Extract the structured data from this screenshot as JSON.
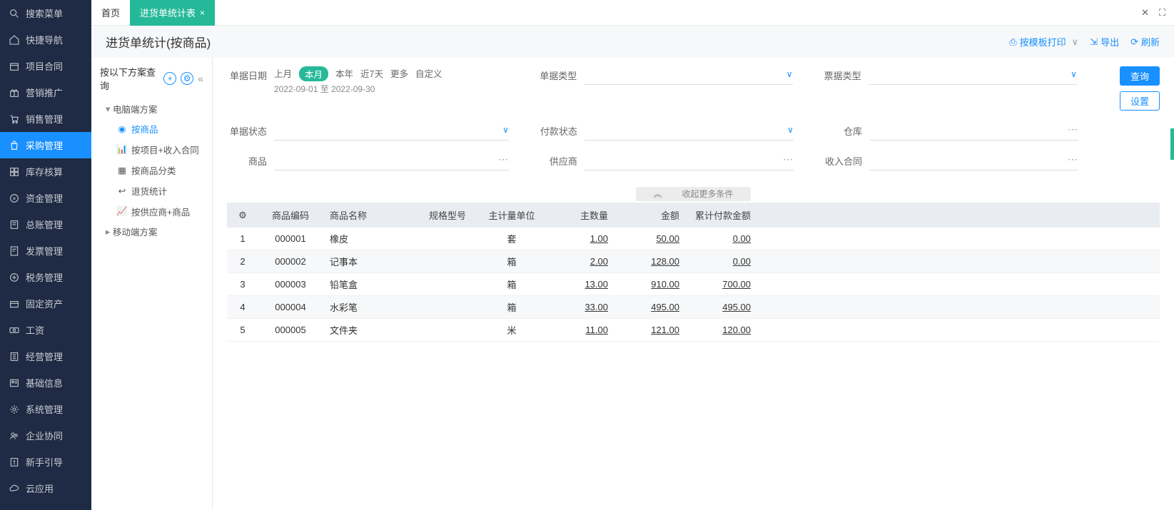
{
  "sidebar": {
    "items": [
      {
        "label": "搜索菜单",
        "icon": "search"
      },
      {
        "label": "快捷导航",
        "icon": "home"
      },
      {
        "label": "项目合同",
        "icon": "box"
      },
      {
        "label": "营销推广",
        "icon": "gift"
      },
      {
        "label": "销售管理",
        "icon": "cart"
      },
      {
        "label": "采购管理",
        "icon": "bag",
        "active": true
      },
      {
        "label": "库存核算",
        "icon": "stock"
      },
      {
        "label": "资金管理",
        "icon": "money"
      },
      {
        "label": "总账管理",
        "icon": "ledger"
      },
      {
        "label": "发票管理",
        "icon": "invoice"
      },
      {
        "label": "税务管理",
        "icon": "tax"
      },
      {
        "label": "固定资产",
        "icon": "asset"
      },
      {
        "label": "工资",
        "icon": "salary"
      },
      {
        "label": "经营管理",
        "icon": "biz"
      },
      {
        "label": "基础信息",
        "icon": "info"
      },
      {
        "label": "系统管理",
        "icon": "gear"
      },
      {
        "label": "企业协同",
        "icon": "team"
      },
      {
        "label": "新手引导",
        "icon": "guide"
      },
      {
        "label": "云应用",
        "icon": "cloud"
      }
    ]
  },
  "tabs": [
    {
      "label": "首页",
      "closable": false
    },
    {
      "label": "进货单统计表",
      "closable": true,
      "active": true
    }
  ],
  "page_title": "进货单统计(按商品)",
  "header_actions": {
    "print": "按模板打印",
    "export": "导出",
    "refresh": "刷新"
  },
  "scheme_panel": {
    "title": "按以下方案查询",
    "groups": [
      {
        "label": "电脑端方案",
        "expanded": true,
        "leaves": [
          {
            "label": "按商品",
            "icon": "target",
            "active": true
          },
          {
            "label": "按项目+收入合同",
            "icon": "chart"
          },
          {
            "label": "按商品分类",
            "icon": "grid"
          },
          {
            "label": "退货统计",
            "icon": "return"
          },
          {
            "label": "按供应商+商品",
            "icon": "bars"
          }
        ]
      },
      {
        "label": "移动端方案",
        "expanded": false
      }
    ]
  },
  "filters": {
    "date": {
      "label": "单据日期",
      "tabs": [
        "上月",
        "本月",
        "本年",
        "近7天",
        "更多",
        "自定义"
      ],
      "active_tab": "本月",
      "range": "2022-09-01 至 2022-09-30"
    },
    "doc_type": {
      "label": "单据类型"
    },
    "ticket_type": {
      "label": "票据类型"
    },
    "doc_status": {
      "label": "单据状态"
    },
    "pay_status": {
      "label": "付款状态"
    },
    "warehouse": {
      "label": "仓库"
    },
    "product": {
      "label": "商品"
    },
    "supplier": {
      "label": "供应商"
    },
    "income": {
      "label": "收入合同"
    },
    "btn_query": "查询",
    "btn_setting": "设置"
  },
  "collapse_more": "收起更多条件",
  "table": {
    "columns": [
      "",
      "商品编码",
      "商品名称",
      "规格型号",
      "主计量单位",
      "主数量",
      "金额",
      "累计付款金额"
    ],
    "rows": [
      {
        "idx": "1",
        "code": "000001",
        "name": "橡皮",
        "spec": "",
        "unit": "套",
        "qty": "1.00",
        "amt": "50.00",
        "paid": "0.00"
      },
      {
        "idx": "2",
        "code": "000002",
        "name": "记事本",
        "spec": "",
        "unit": "箱",
        "qty": "2.00",
        "amt": "128.00",
        "paid": "0.00"
      },
      {
        "idx": "3",
        "code": "000003",
        "name": "铅笔盒",
        "spec": "",
        "unit": "箱",
        "qty": "13.00",
        "amt": "910.00",
        "paid": "700.00"
      },
      {
        "idx": "4",
        "code": "000004",
        "name": "水彩笔",
        "spec": "",
        "unit": "箱",
        "qty": "33.00",
        "amt": "495.00",
        "paid": "495.00"
      },
      {
        "idx": "5",
        "code": "000005",
        "name": "文件夹",
        "spec": "",
        "unit": "米",
        "qty": "11.00",
        "amt": "121.00",
        "paid": "120.00"
      }
    ]
  },
  "colors": {
    "sidebar_bg": "#1f2b44",
    "active_blue": "#1890ff",
    "accent_green": "#26b999",
    "thead_bg": "#e9edf2"
  }
}
